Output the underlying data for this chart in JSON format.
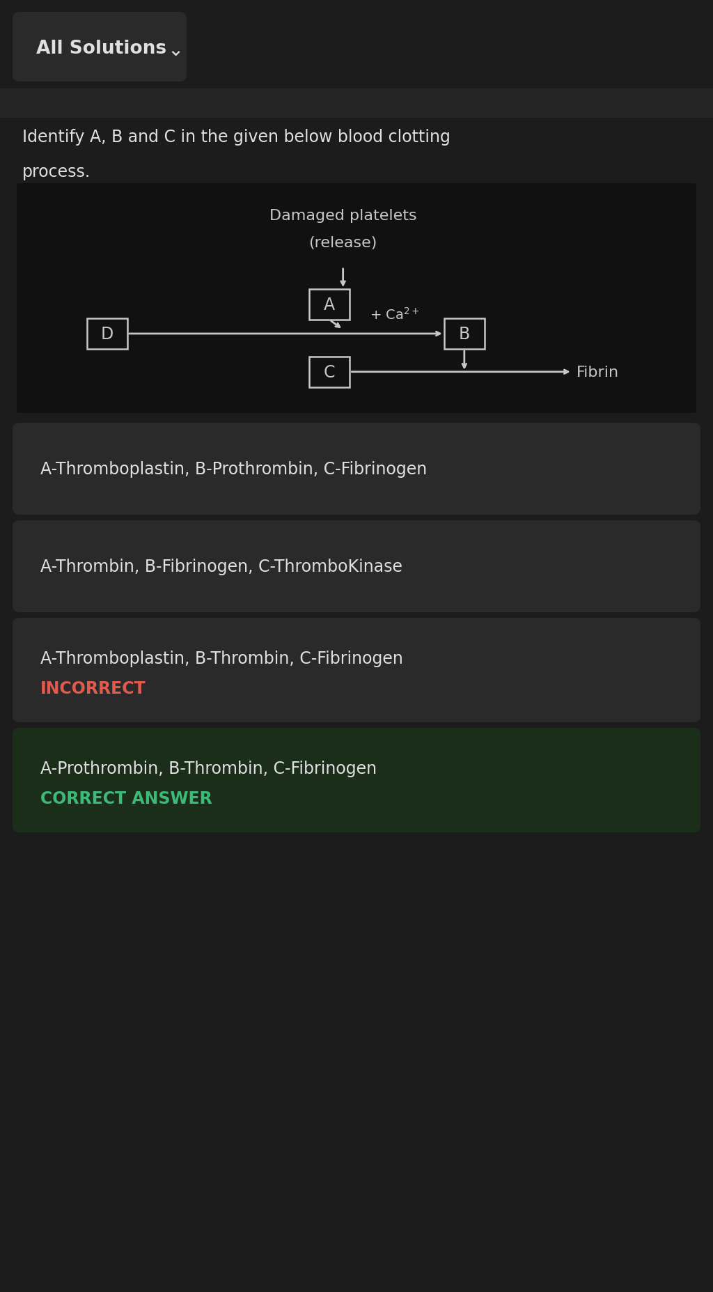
{
  "bg_dark": "#1c1c1c",
  "bg_medium": "#252525",
  "bg_card": "#2a2a2a",
  "bg_correct_card": "#1a2e1a",
  "text_white": "#e0e0e0",
  "text_red": "#e05a4e",
  "text_green": "#3dba7a",
  "header_bg": "#2a2a2a",
  "header_text": "All Solutions",
  "question_line1": "Identify A, B and C in the given below blood clotting",
  "question_line2": "process.",
  "diagram_text_color": "#c8c8c8",
  "diagram_bg": "#111111",
  "option1": "A-Thromboplastin, B-Prothrombin, C-Fibrinogen",
  "option2": "A-Thrombin, B-Fibrinogen, C-ThromboKinase",
  "option3": "A-Thromboplastin, B-Thrombin, C-Fibrinogen",
  "option3_label": "INCORRECT",
  "option4": "A-Prothrombin, B-Thrombin, C-Fibrinogen",
  "option4_label": "CORRECT ANSWER"
}
